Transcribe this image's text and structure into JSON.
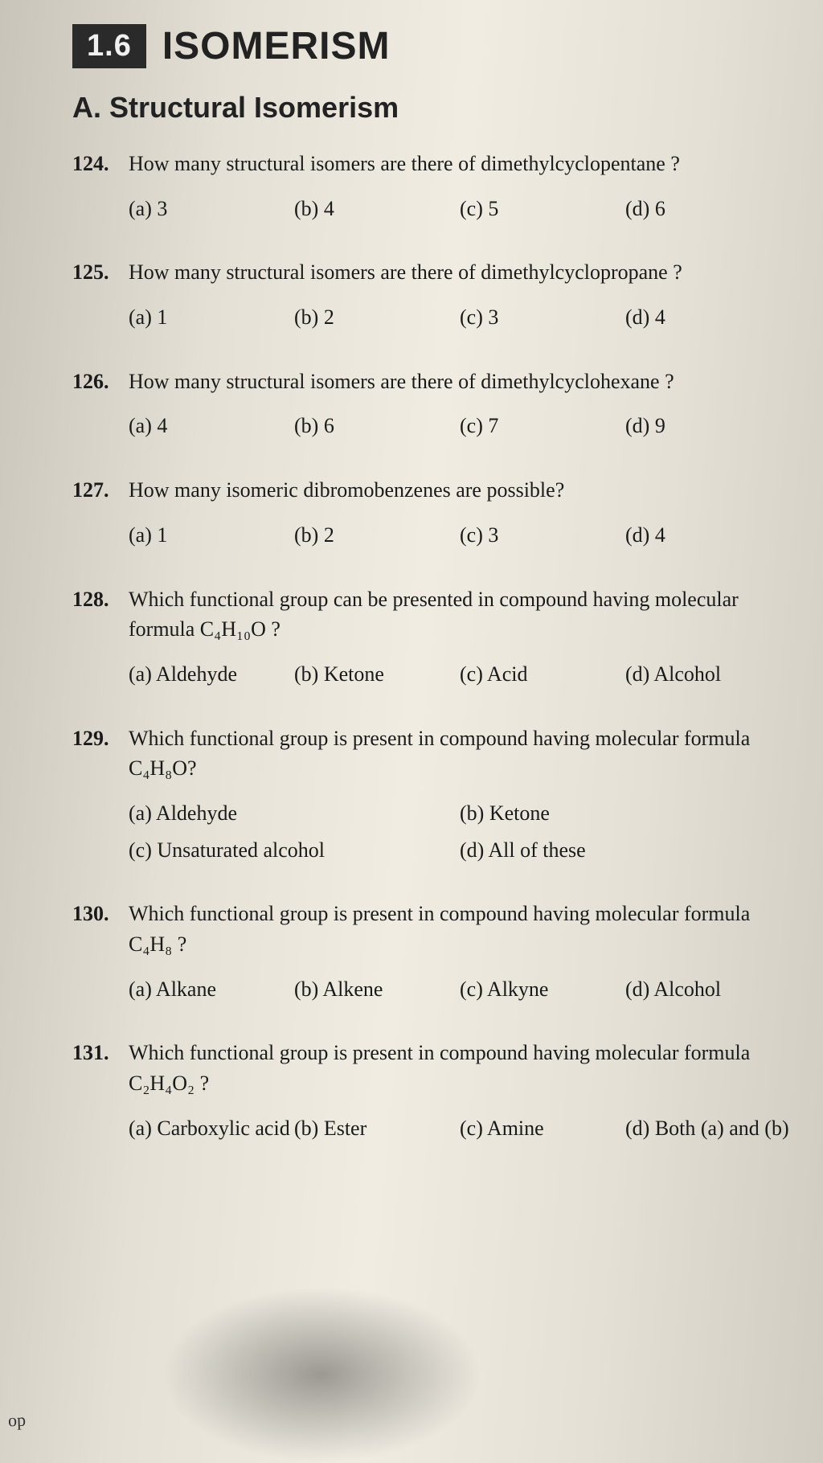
{
  "section": {
    "number": "1.6",
    "title": "ISOMERISM"
  },
  "subsection": "A. Structural Isomerism",
  "questions": [
    {
      "num": "124.",
      "text": "How many structural isomers are there of dimethylcyclopentane ?",
      "opts": [
        {
          "l": "(a)",
          "v": "3"
        },
        {
          "l": "(b)",
          "v": "4"
        },
        {
          "l": "(c)",
          "v": "5"
        },
        {
          "l": "(d)",
          "v": "6"
        }
      ],
      "cols": 4
    },
    {
      "num": "125.",
      "text": "How many structural isomers are there of dimethylcyclopropane ?",
      "opts": [
        {
          "l": "(a)",
          "v": "1"
        },
        {
          "l": "(b)",
          "v": "2"
        },
        {
          "l": "(c)",
          "v": "3"
        },
        {
          "l": "(d)",
          "v": "4"
        }
      ],
      "cols": 4
    },
    {
      "num": "126.",
      "text": "How many structural isomers are there of dimethylcyclohexane ?",
      "opts": [
        {
          "l": "(a)",
          "v": "4"
        },
        {
          "l": "(b)",
          "v": "6"
        },
        {
          "l": "(c)",
          "v": "7"
        },
        {
          "l": "(d)",
          "v": "9"
        }
      ],
      "cols": 4
    },
    {
      "num": "127.",
      "text": "How many isomeric dibromobenzenes are possible?",
      "opts": [
        {
          "l": "(a)",
          "v": "1"
        },
        {
          "l": "(b)",
          "v": "2"
        },
        {
          "l": "(c)",
          "v": "3"
        },
        {
          "l": "(d)",
          "v": "4"
        }
      ],
      "cols": 4
    },
    {
      "num": "128.",
      "text": "Which functional group can be presented in compound having molecular formula C₄H₁₀O ?",
      "opts": [
        {
          "l": "(a)",
          "v": "Aldehyde"
        },
        {
          "l": "(b)",
          "v": "Ketone"
        },
        {
          "l": "(c)",
          "v": "Acid"
        },
        {
          "l": "(d)",
          "v": "Alcohol"
        }
      ],
      "cols": 4
    },
    {
      "num": "129.",
      "text": "Which functional group is present in compound having molecular formula C₄H₈O?",
      "opts": [
        {
          "l": "(a)",
          "v": "Aldehyde"
        },
        {
          "l": "(b)",
          "v": "Ketone"
        },
        {
          "l": "(c)",
          "v": "Unsaturated alcohol"
        },
        {
          "l": "(d)",
          "v": "All of these"
        }
      ],
      "cols": 2
    },
    {
      "num": "130.",
      "text": "Which functional group is present in compound having molecular formula C₄H₈ ?",
      "opts": [
        {
          "l": "(a)",
          "v": "Alkane"
        },
        {
          "l": "(b)",
          "v": "Alkene"
        },
        {
          "l": "(c)",
          "v": "Alkyne"
        },
        {
          "l": "(d)",
          "v": "Alcohol"
        }
      ],
      "cols": 4
    },
    {
      "num": "131.",
      "text": "Which functional group is present in compound having molecular formula C₂H₄O₂ ?",
      "opts": [
        {
          "l": "(a)",
          "v": "Carboxylic acid"
        },
        {
          "l": "(b)",
          "v": "Ester"
        },
        {
          "l": "(c)",
          "v": "Amine"
        },
        {
          "l": "(d)",
          "v": "Both (a) and (b)"
        }
      ],
      "cols": 4
    }
  ],
  "margin": "op"
}
